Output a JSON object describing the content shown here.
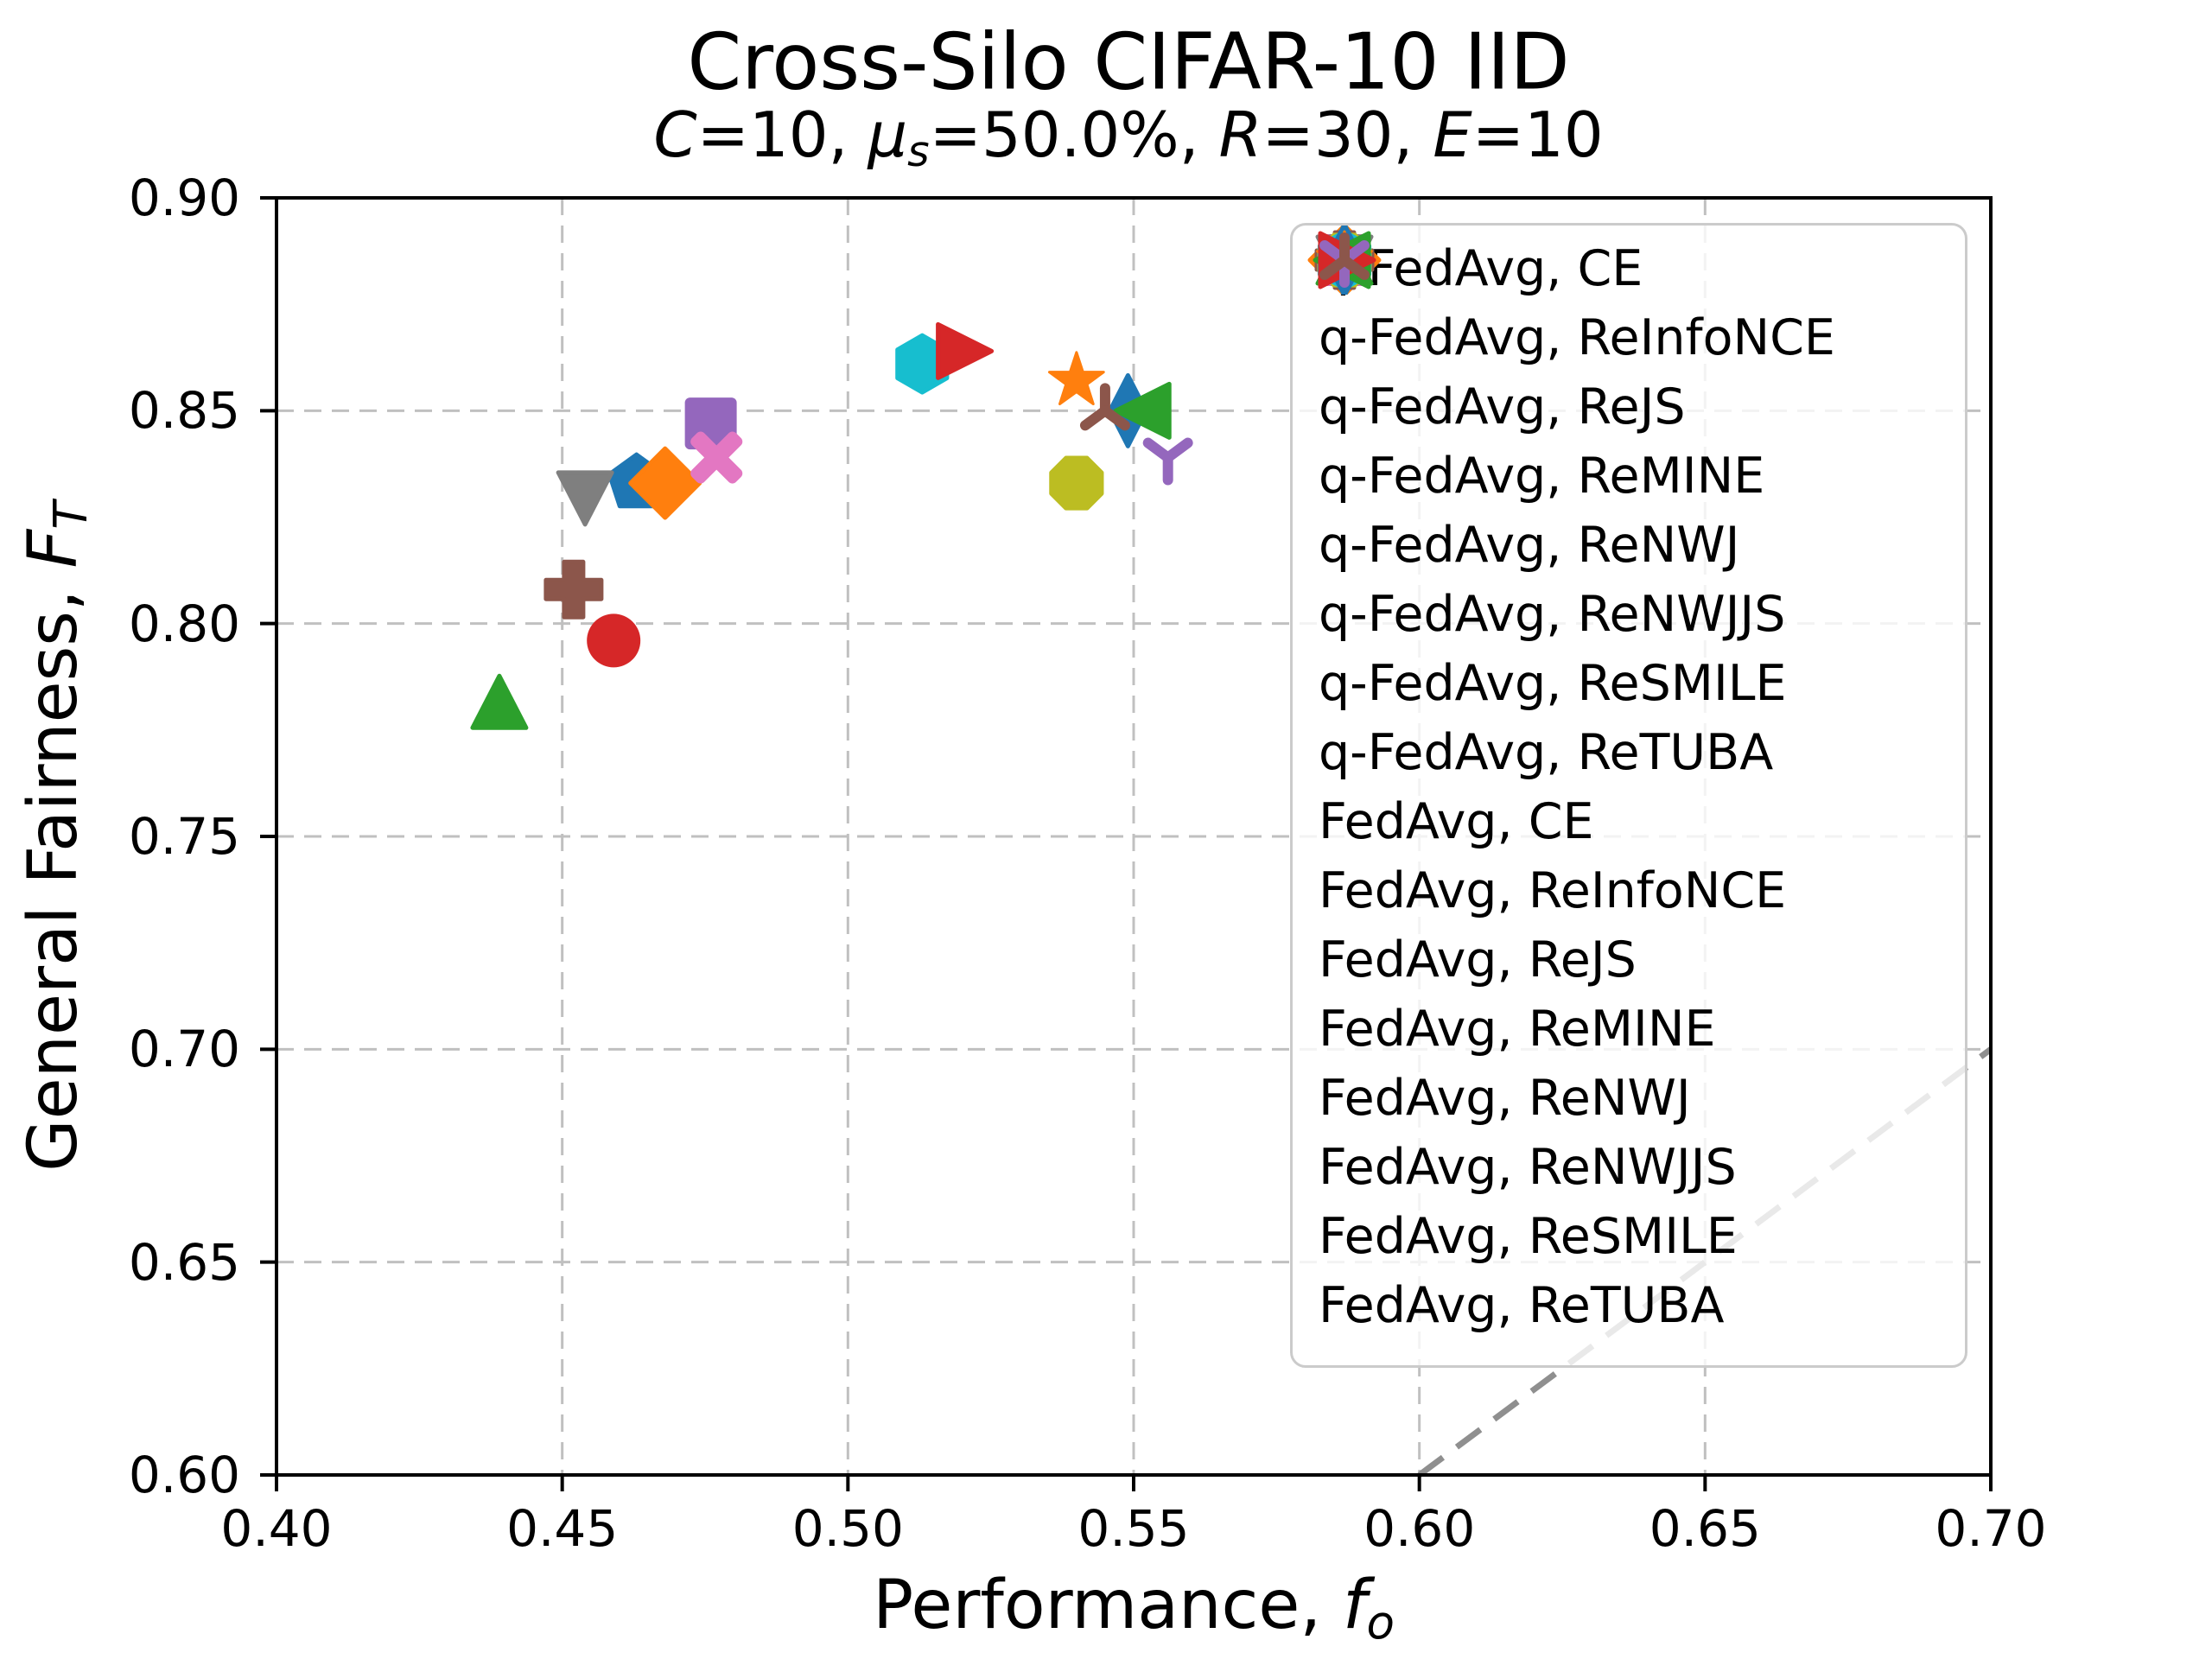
{
  "chart_data": {
    "type": "scatter",
    "title": "Cross-Silo CIFAR-10 IID",
    "subtitle": "C=10, μₛ=50.0%, R=30, E=10",
    "xlabel": "Performance, fₒ",
    "ylabel": "General Fairness, Fᴛ",
    "xlim": [
      0.4,
      0.7
    ],
    "ylim": [
      0.6,
      0.9
    ],
    "x_ticks": [
      0.4,
      0.45,
      0.5,
      0.55,
      0.6,
      0.65,
      0.7
    ],
    "x_tick_labels": [
      "0.40",
      "0.45",
      "0.50",
      "0.55",
      "0.60",
      "0.65",
      "0.70"
    ],
    "y_ticks": [
      0.6,
      0.65,
      0.7,
      0.75,
      0.8,
      0.85,
      0.9
    ],
    "y_tick_labels": [
      "0.60",
      "0.65",
      "0.70",
      "0.75",
      "0.80",
      "0.85",
      "0.90"
    ],
    "grid": true,
    "grid_color": "#c0c0c0",
    "legend_position": "upper right",
    "legend_border_color": "#cbcbcb",
    "reference_line": {
      "style": "dashed",
      "color": "#8f8f8f",
      "from": [
        0.6,
        0.6
      ],
      "to": [
        0.7,
        0.7
      ]
    },
    "series": [
      {
        "name": "q-FedAvg, CE",
        "marker": "pentagon",
        "color": "#1f77b4",
        "x": 0.463,
        "y": 0.833
      },
      {
        "name": "q-FedAvg, ReInfoNCE",
        "marker": "diamond",
        "color": "#ff7f0e",
        "x": 0.468,
        "y": 0.833
      },
      {
        "name": "q-FedAvg, ReJS",
        "marker": "triangle-up",
        "color": "#2ca02c",
        "x": 0.439,
        "y": 0.781
      },
      {
        "name": "q-FedAvg, ReMINE",
        "marker": "circle",
        "color": "#d62728",
        "x": 0.459,
        "y": 0.796
      },
      {
        "name": "q-FedAvg, ReNWJ",
        "marker": "square",
        "color": "#9467bd",
        "x": 0.476,
        "y": 0.847
      },
      {
        "name": "q-FedAvg, ReNWJJS",
        "marker": "plus",
        "color": "#8c564b",
        "x": 0.452,
        "y": 0.808
      },
      {
        "name": "q-FedAvg, ReSMILE",
        "marker": "x",
        "color": "#e377c2",
        "x": 0.477,
        "y": 0.839
      },
      {
        "name": "q-FedAvg, ReTUBA",
        "marker": "triangle-down",
        "color": "#7f7f7f",
        "x": 0.454,
        "y": 0.83
      },
      {
        "name": "FedAvg, CE",
        "marker": "octagon",
        "color": "#bcbd22",
        "x": 0.54,
        "y": 0.833
      },
      {
        "name": "FedAvg, ReInfoNCE",
        "marker": "hexagon",
        "color": "#17becf",
        "x": 0.513,
        "y": 0.861
      },
      {
        "name": "FedAvg, ReJS",
        "marker": "thin-diamond",
        "color": "#1f77b4",
        "x": 0.549,
        "y": 0.85
      },
      {
        "name": "FedAvg, ReMINE",
        "marker": "star",
        "color": "#ff7f0e",
        "x": 0.54,
        "y": 0.857
      },
      {
        "name": "FedAvg, ReNWJ",
        "marker": "triangle-left",
        "color": "#2ca02c",
        "x": 0.552,
        "y": 0.85
      },
      {
        "name": "FedAvg, ReNWJJS",
        "marker": "triangle-right",
        "color": "#d62728",
        "x": 0.52,
        "y": 0.864
      },
      {
        "name": "FedAvg, ReSMILE",
        "marker": "tri-down",
        "color": "#9467bd",
        "x": 0.556,
        "y": 0.839
      },
      {
        "name": "FedAvg, ReTUBA",
        "marker": "tri-up",
        "color": "#8c564b",
        "x": 0.545,
        "y": 0.85
      }
    ]
  },
  "text": {
    "subtitle_segments": [
      {
        "t": "C",
        "s": "it"
      },
      {
        "t": "=10, "
      },
      {
        "t": "μ",
        "s": "it"
      },
      {
        "t": "s",
        "s": "sb"
      },
      {
        "t": "=50.0%, "
      },
      {
        "t": "R",
        "s": "it"
      },
      {
        "t": "=30, "
      },
      {
        "t": "E",
        "s": "it"
      },
      {
        "t": "=10"
      }
    ],
    "xlabel_segments": [
      {
        "t": "Performance, "
      },
      {
        "t": "f",
        "s": "it"
      },
      {
        "t": "o",
        "s": "sb"
      }
    ],
    "ylabel_segments": [
      {
        "t": "General Fairness, "
      },
      {
        "t": "F",
        "s": "it"
      },
      {
        "t": "T",
        "s": "sb"
      }
    ]
  }
}
